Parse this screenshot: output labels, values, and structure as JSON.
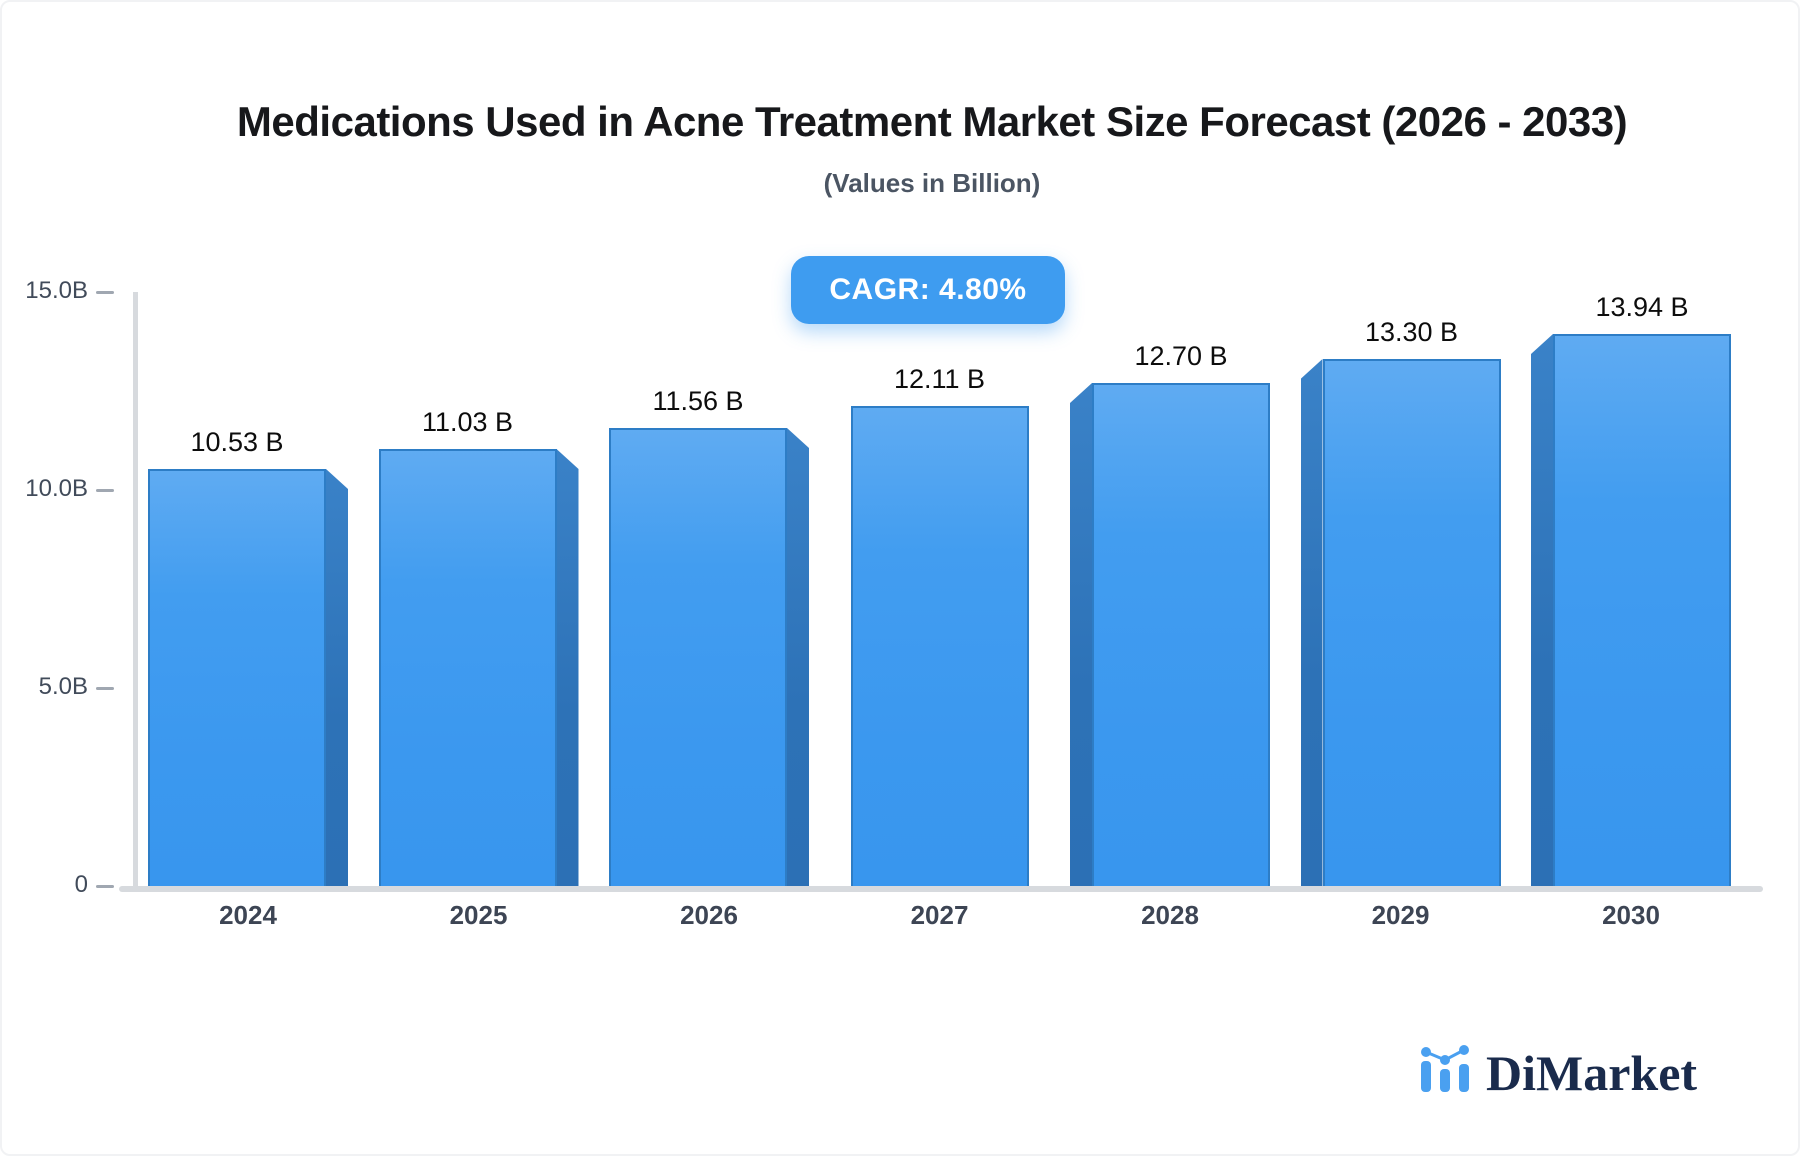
{
  "header": {
    "title": "Medications Used in Acne Treatment Market Size Forecast (2026 - 2033)",
    "subtitle": "(Values in Billion)",
    "cagr_badge": "CAGR: 4.80%"
  },
  "chart_data": {
    "type": "bar",
    "title": "Medications Used in Acne Treatment Market Size Forecast (2026 - 2033)",
    "subtitle": "(Values in Billion)",
    "annotation": "CAGR: 4.80%",
    "categories": [
      "2024",
      "2025",
      "2026",
      "2027",
      "2028",
      "2029",
      "2030"
    ],
    "values": [
      10.53,
      11.03,
      11.56,
      12.11,
      12.7,
      13.3,
      13.94
    ],
    "bar_labels": [
      "10.53 B",
      "11.03 B",
      "11.56 B",
      "12.11 B",
      "12.70 B",
      "13.30 B",
      "13.94 B"
    ],
    "xlabel": "",
    "ylabel": "",
    "ylim": [
      0,
      15
    ],
    "y_ticks": [
      {
        "label": "15.0B",
        "value": 15
      },
      {
        "label": "10.0B",
        "value": 10
      },
      {
        "label": "5.0B",
        "value": 5
      },
      {
        "label": "0",
        "value": 0
      }
    ],
    "grid": false,
    "legend": false,
    "bar_style": "3d-beveled",
    "colors": {
      "bar": "#3b98ef",
      "bar_highlight": "#5fabf2",
      "bar_outline": "#2d7dc6",
      "bar_bevel": "#2d72b7",
      "axis": "#d7dade",
      "tick": "#a0a7b1",
      "badge": "#3e9cf0"
    }
  },
  "footer": {
    "brand": "DiMarket",
    "logo_icon": "mini-bar-chart-icon",
    "logo_color": "#4aa0f0",
    "brand_text_color": "#1a2b4c"
  }
}
